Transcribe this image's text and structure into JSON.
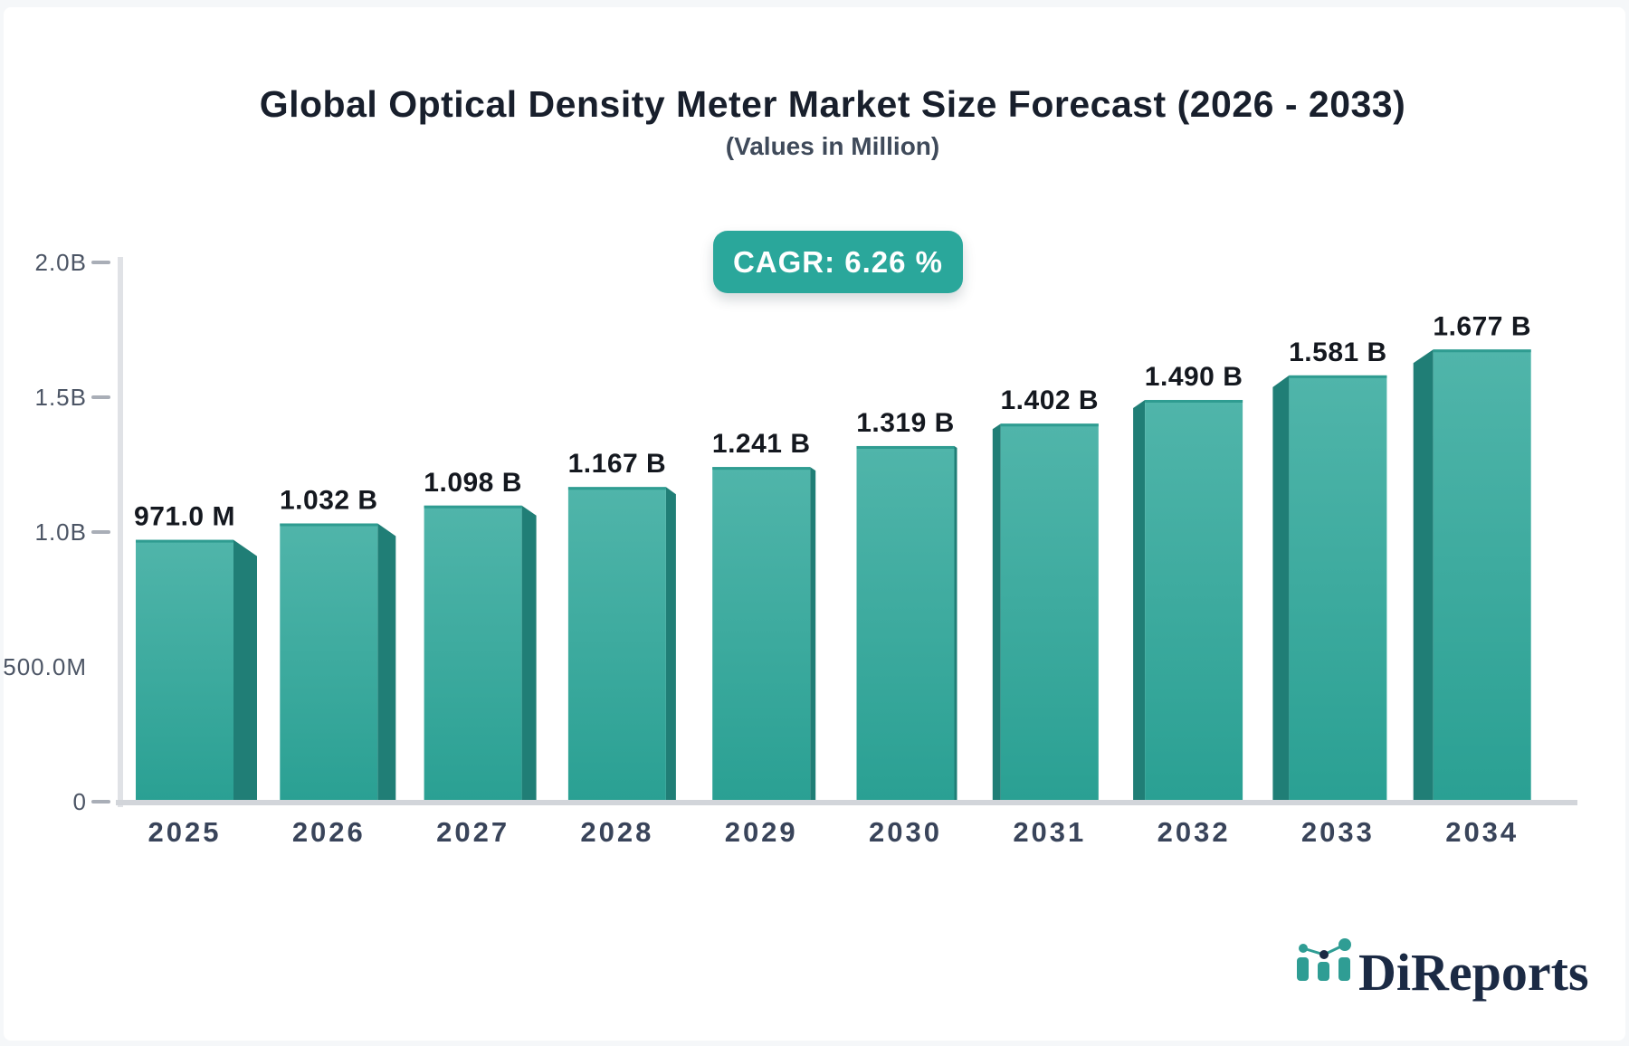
{
  "brand": {
    "name": "DiReports"
  },
  "chart_data": {
    "type": "bar",
    "title": "Global Optical Density Meter Market Size Forecast (2026 - 2033)",
    "subtitle": "(Values in Million)",
    "badge_label": "CAGR: 6.26 %",
    "categories": [
      "2025",
      "2026",
      "2027",
      "2028",
      "2029",
      "2030",
      "2031",
      "2032",
      "2033",
      "2034"
    ],
    "values_billions": [
      0.971,
      1.032,
      1.098,
      1.167,
      1.241,
      1.319,
      1.402,
      1.49,
      1.581,
      1.677
    ],
    "value_labels": [
      "971.0 M",
      "1.032 B",
      "1.098 B",
      "1.167 B",
      "1.241 B",
      "1.319 B",
      "1.402 B",
      "1.490 B",
      "1.581 B",
      "1.677 B"
    ],
    "xlabel": "",
    "ylabel": "",
    "ylim": [
      0,
      2.0
    ],
    "grid": false,
    "legend_position": "none",
    "y_axis_ticks": [
      {
        "label": "2.0B",
        "value": 2.0,
        "dash": true
      },
      {
        "label": "1.5B",
        "value": 1.5,
        "dash": true
      },
      {
        "label": "1.0B",
        "value": 1.0,
        "dash": true
      },
      {
        "label": "500.0M",
        "value": 0.5,
        "dash": false
      },
      {
        "label": "0",
        "value": 0.0,
        "dash": true
      }
    ],
    "colors": {
      "accent_teal": "#2aa79b",
      "bar_top": "#50b5aa",
      "bar_bottom": "#2aa093",
      "bar_side": "#207e76",
      "bar_edge": "#2f9c91",
      "title_text": "#181f2c",
      "subtitle_text": "#3f4a5a",
      "axis_text": "#4c5565",
      "category_text": "#39445a",
      "value_text": "#14181f",
      "badge_text": "#ffffff",
      "logo_navy": "#1b2a44",
      "logo_teal": "#2f9d94",
      "baseline": "#d2d5da",
      "axis_line": "#e0e2e6",
      "tick_dash": "#a9aeb7"
    }
  }
}
